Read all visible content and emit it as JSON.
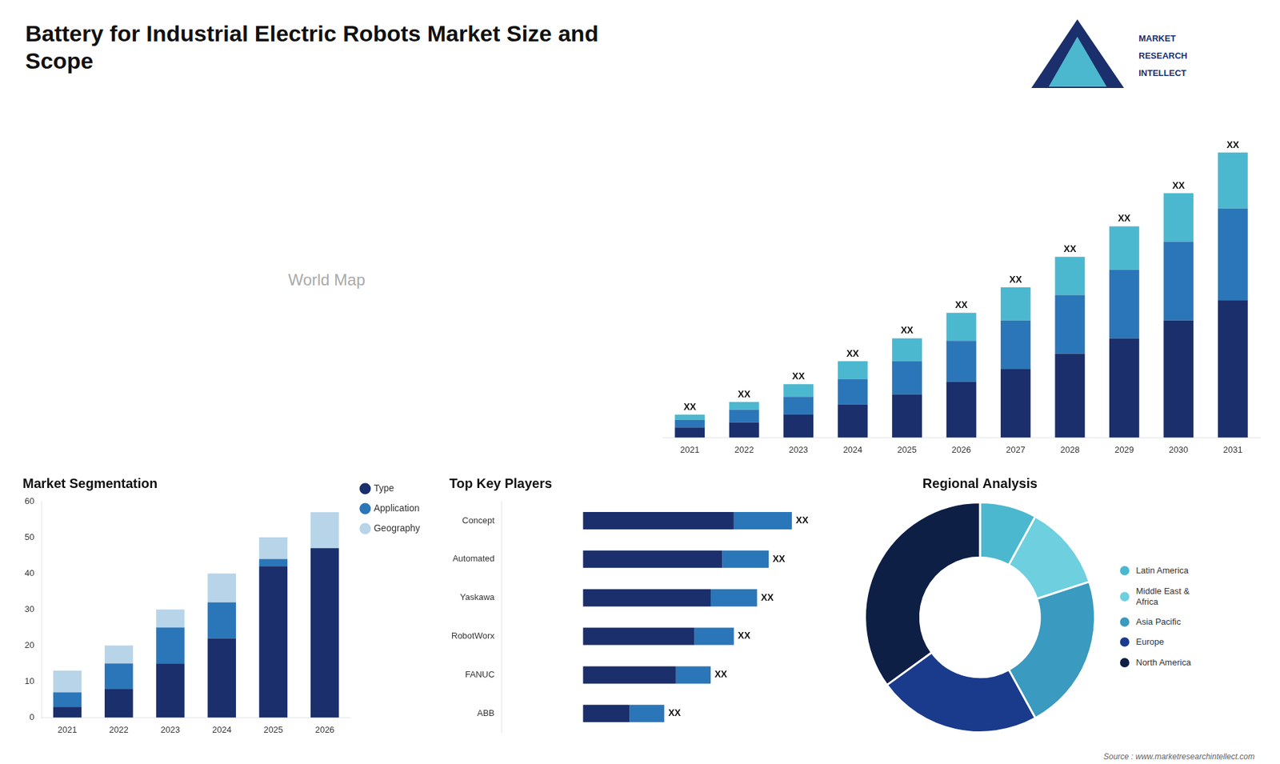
{
  "chart_data": [
    {
      "type": "bar",
      "title": "Battery for Industrial Electric Robots Market Size and\nScope",
      "stacked": true,
      "categories": [
        "2021",
        "2022",
        "2023",
        "2024",
        "2025",
        "2026",
        "2027",
        "2028",
        "2029",
        "2030",
        "2031"
      ],
      "series": [
        {
          "color": "#1a2f6b",
          "values": [
            2.0,
            3.0,
            4.5,
            6.5,
            8.5,
            11.0,
            13.5,
            16.5,
            19.5,
            23.0,
            27.0
          ]
        },
        {
          "color": "#2b76b8",
          "values": [
            1.5,
            2.5,
            3.5,
            5.0,
            6.5,
            8.0,
            9.5,
            11.5,
            13.5,
            15.5,
            18.0
          ]
        },
        {
          "color": "#4cb8cf",
          "values": [
            1.0,
            1.5,
            2.5,
            3.5,
            4.5,
            5.5,
            6.5,
            7.5,
            8.5,
            9.5,
            11.0
          ],
          "value_labels": [
            "XX",
            "XX",
            "XX",
            "XX",
            "XX",
            "XX",
            "XX",
            "XX",
            "XX",
            "XX",
            "XX"
          ]
        }
      ],
      "ylim": [
        0,
        65
      ],
      "grid": false,
      "tick_labels": "x",
      "annotations": [
        "World Map",
        "MARKET",
        "RESEARCH",
        "INTELLECT",
        "Source : www.marketresearchintellect.com"
      ]
    },
    {
      "type": "bar",
      "title": "Market Segmentation",
      "stacked": true,
      "categories": [
        "2021",
        "2022",
        "2023",
        "2024",
        "2025",
        "2026"
      ],
      "series": [
        {
          "name": "Type",
          "color": "#1a2f6b",
          "values": [
            3,
            8,
            15,
            22,
            42,
            47
          ]
        },
        {
          "name": "Application",
          "color": "#2b76b8",
          "values": [
            4,
            7,
            10,
            10,
            2,
            0
          ]
        },
        {
          "name": "Geography",
          "color": "#b8d4e8",
          "values": [
            6,
            5,
            5,
            8,
            6,
            10
          ]
        }
      ],
      "ylim": [
        0,
        60
      ],
      "yticks": [
        0,
        10,
        20,
        30,
        40,
        50,
        60
      ],
      "grid": false,
      "legend": "right"
    },
    {
      "type": "bar",
      "title": "Top Key Players",
      "orientation": "horizontal",
      "stacked": true,
      "categories": [
        "Concept",
        "Automated",
        "Yaskawa",
        "RobotWorx",
        "FANUC",
        "ABB"
      ],
      "series": [
        {
          "color": "#1a2f6b",
          "values": [
            6.5,
            6.0,
            5.5,
            4.8,
            4.0,
            2.0
          ]
        },
        {
          "color": "#2b76b8",
          "values": [
            2.5,
            2.0,
            2.0,
            1.7,
            1.5,
            1.5
          ],
          "value_labels": [
            "XX",
            "XX",
            "XX",
            "XX",
            "XX",
            "XX"
          ]
        }
      ],
      "xlim": [
        -3.5,
        10.5
      ],
      "grid": false,
      "tick_labels": "y"
    },
    {
      "type": "doughnut",
      "title": "Regional Analysis",
      "categories": [
        "Latin America",
        "Middle East &\nAfrica",
        "Asia Pacific",
        "Europe",
        "North America"
      ],
      "values": [
        8,
        12,
        22,
        23,
        35
      ],
      "colors": [
        "#4cb8cf",
        "#6ecfdf",
        "#3a9abf",
        "#1a3a8c",
        "#0d1f45"
      ],
      "legend": "right"
    }
  ]
}
